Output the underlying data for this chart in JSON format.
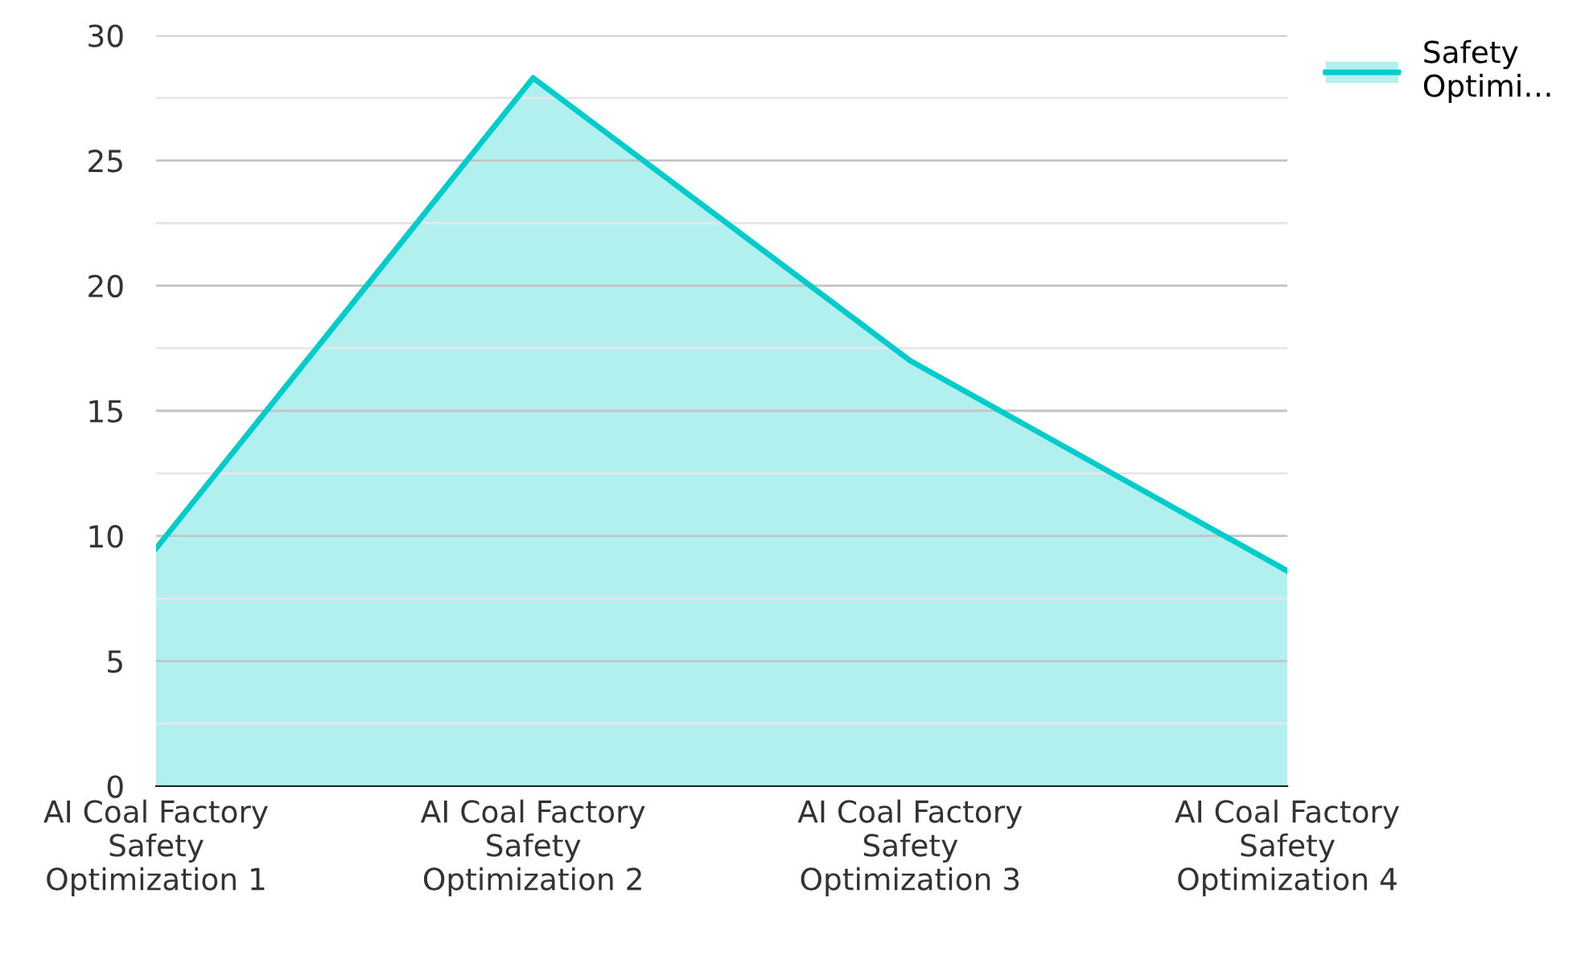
{
  "chart_data": {
    "type": "area",
    "categories": [
      "AI Coal Factory Safety Optimization 1",
      "AI Coal Factory Safety Optimization 2",
      "AI Coal Factory Safety Optimization 3",
      "AI Coal Factory Safety Optimization 4"
    ],
    "series": [
      {
        "name": "Safety Optimi…",
        "color": "#00cccc",
        "values": [
          9.5,
          28.3,
          17.0,
          8.6
        ]
      }
    ],
    "ylim": [
      0,
      30
    ],
    "yticks": [
      0,
      {
        "value": 2.5,
        "label": null
      },
      5,
      {
        "value": 7.5,
        "label": null
      },
      10,
      {
        "value": 12.5,
        "label": null
      },
      15,
      {
        "value": 17.5,
        "label": null
      },
      20,
      {
        "value": 22.5,
        "label": null
      },
      25,
      {
        "value": 27.5,
        "label": null
      },
      30
    ],
    "grid": "y",
    "legend": "top right",
    "marker": "none",
    "line_style": "solid"
  }
}
